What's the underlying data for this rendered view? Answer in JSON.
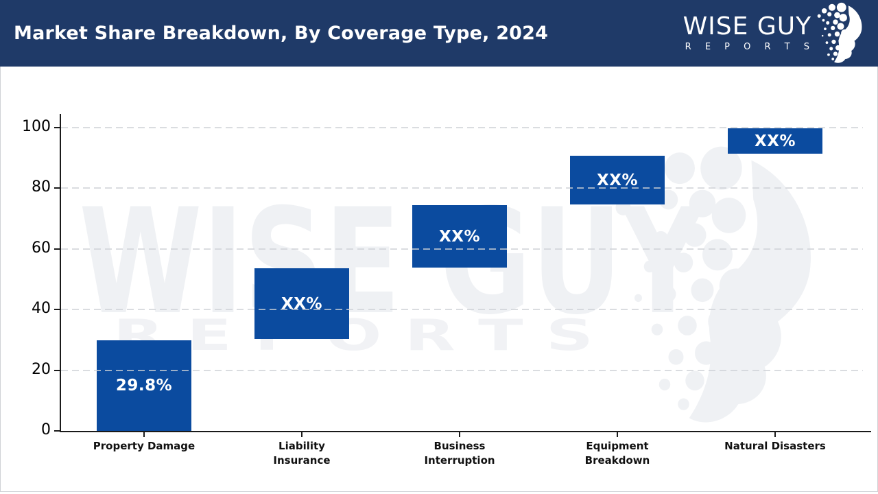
{
  "header": {
    "title": "Market Share Breakdown, By Coverage Type, 2024",
    "bg_color": "#1f3a68",
    "logo": {
      "line1": "WISE GUY",
      "line2": "R E P O R T S"
    }
  },
  "watermark": {
    "line1": "WISE GUY",
    "line2": "R E P O R T S"
  },
  "chart_data": {
    "type": "bar",
    "subtype": "floating-segment-waterfall",
    "title": "Market Share Breakdown, By Coverage Type, 2024",
    "categories": [
      "Property Damage",
      "Liability Insurance",
      "Business Interruption",
      "Equipment Breakdown",
      "Natural Disasters"
    ],
    "category_label_lines": [
      [
        "Property Damage"
      ],
      [
        "Liability",
        "Insurance"
      ],
      [
        "Business",
        "Interruption"
      ],
      [
        "Equipment",
        "Breakdown"
      ],
      [
        "Natural Disasters"
      ]
    ],
    "segments": [
      {
        "category": "Property Damage",
        "start": 0,
        "end": 29.8,
        "label": "29.8%"
      },
      {
        "category": "Liability Insurance",
        "start": 30.3,
        "end": 53.6,
        "label": "XX%"
      },
      {
        "category": "Business Interruption",
        "start": 53.8,
        "end": 74.4,
        "label": "XX%"
      },
      {
        "category": "Equipment Breakdown",
        "start": 74.6,
        "end": 90.7,
        "label": "XX%"
      },
      {
        "category": "Natural Disasters",
        "start": 91.3,
        "end": 99.8,
        "label": "XX%"
      }
    ],
    "xlabel": "",
    "ylabel": "",
    "ylim": [
      0,
      105
    ],
    "yticks": [
      0,
      20,
      40,
      60,
      80,
      100
    ],
    "grid": "horizontal-dashed",
    "legend": "none",
    "bar_color": "#0b4b9f",
    "bar_label_color": "#ffffff",
    "axis_color": "#1a1a1a"
  }
}
